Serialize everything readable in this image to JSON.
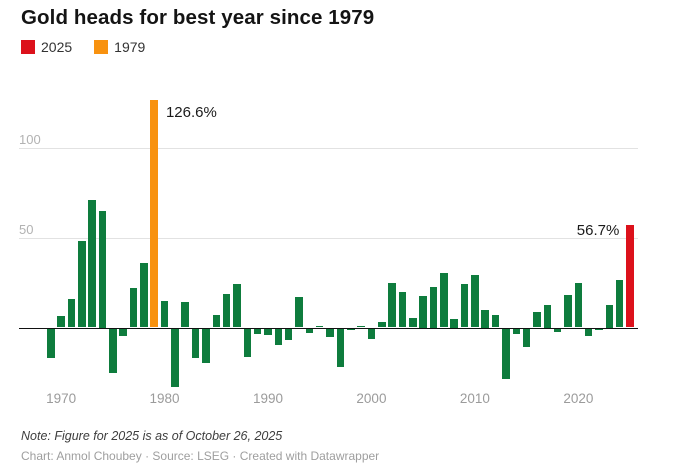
{
  "header": {
    "title": "Gold heads for best year since 1979"
  },
  "legend": {
    "items": [
      {
        "label": "2025",
        "color": "#dc111b"
      },
      {
        "label": "1979",
        "color": "#f8920f"
      }
    ]
  },
  "chart_data": {
    "type": "bar",
    "title": "Gold heads for best year since 1979",
    "unit": "%",
    "years": [
      1969,
      1970,
      1971,
      1972,
      1973,
      1974,
      1975,
      1976,
      1977,
      1978,
      1979,
      1980,
      1981,
      1982,
      1983,
      1984,
      1985,
      1986,
      1987,
      1988,
      1989,
      1990,
      1991,
      1992,
      1993,
      1994,
      1995,
      1996,
      1997,
      1998,
      1999,
      2000,
      2001,
      2002,
      2003,
      2004,
      2005,
      2006,
      2007,
      2008,
      2009,
      2010,
      2011,
      2012,
      2013,
      2014,
      2015,
      2016,
      2017,
      2018,
      2019,
      2020,
      2021,
      2022,
      2023,
      2024,
      2025
    ],
    "values": [
      -16,
      6.5,
      16,
      48,
      71,
      65,
      -24.5,
      -4,
      22,
      36,
      126.6,
      14.5,
      -32,
      14,
      -16,
      -19,
      7,
      18.5,
      24,
      -15.5,
      -2.8,
      -3.5,
      -9,
      -6,
      17,
      -2,
      1,
      -4.5,
      -21,
      -0.8,
      0.9,
      -5.5,
      2.8,
      24.5,
      19.5,
      5.5,
      17.5,
      22.5,
      30.5,
      5,
      24,
      29,
      10,
      7,
      -27.5,
      -2.5,
      -10,
      8.5,
      12.5,
      -1.5,
      18,
      24.5,
      -4,
      -0.3,
      12.5,
      26.5,
      56.7
    ],
    "bar_colors": {
      "default": "#0e7c3d",
      "1979": "#f8920f",
      "2025": "#dc111b"
    },
    "annotations": [
      {
        "year": 1979,
        "label": "126.6%",
        "placement": "right"
      },
      {
        "year": 2025,
        "label": "56.7%",
        "placement": "left"
      }
    ],
    "y_ticks": [
      50,
      100
    ],
    "x_ticks": [
      1970,
      1980,
      1990,
      2000,
      2010,
      2020
    ],
    "ylim": [
      -35,
      140
    ],
    "grid": "horizontal",
    "legend_position": "top-left"
  },
  "footer": {
    "note": "Note: Figure for 2025 is as of October 26, 2025",
    "credits": "Chart: Anmol Choubey · Source: LSEG · Created with Datawrapper"
  },
  "colors": {
    "background": "#ffffff",
    "title_text": "#141414",
    "axis_label_text": "#9b9b9b",
    "y_label_text": "#b2b2b2",
    "gridline": "#e2e2e2",
    "baseline": "#111111",
    "annotation_text": "#1b1b1b",
    "note_text": "#3e3e3e",
    "credits_text": "#9e9e9e"
  }
}
